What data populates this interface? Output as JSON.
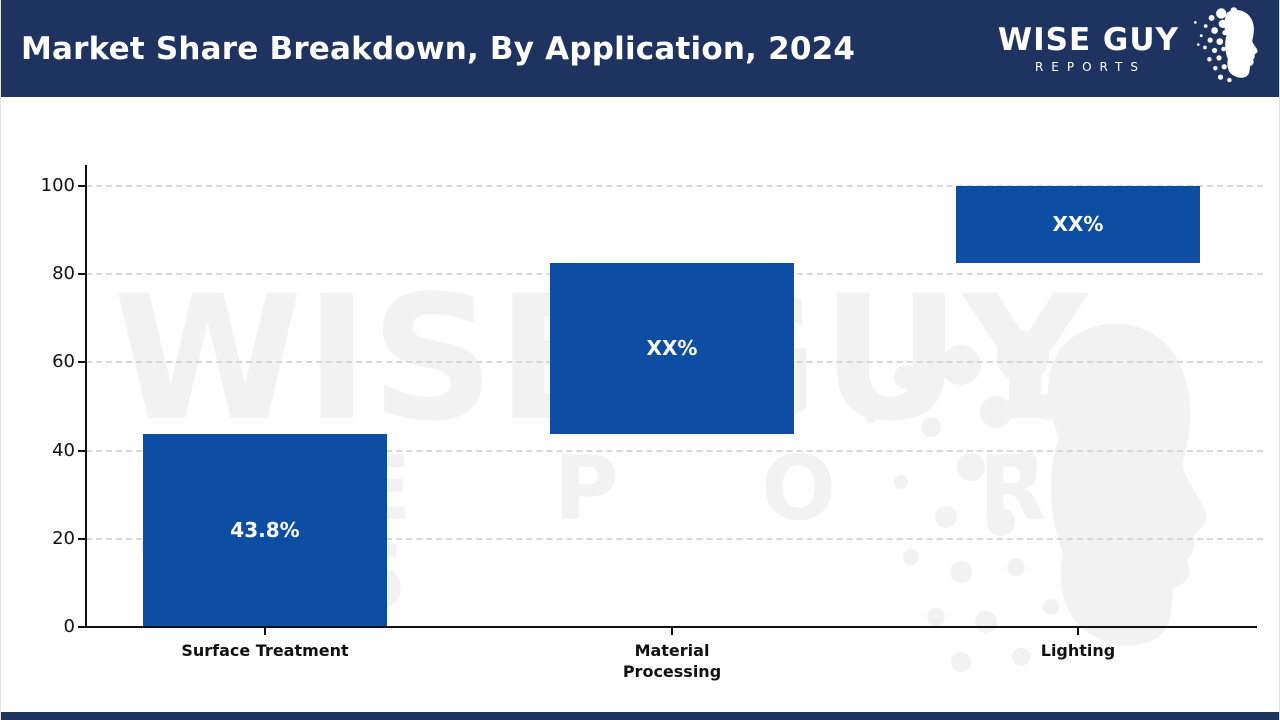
{
  "header": {
    "title": "Market Share Breakdown, By Application, 2024",
    "bg_color": "#1f3361",
    "logo": {
      "line1": "WISE GUY",
      "line2": "REPORTS",
      "line2_spaced": "R E P O R T S"
    }
  },
  "chart_data": {
    "type": "bar",
    "variant": "floating-segment-waterfall",
    "title": "Market Share Breakdown, By Application, 2024",
    "categories": [
      "Surface Treatment",
      "Material\nProcessing",
      "Lighting"
    ],
    "bars": [
      {
        "category": "Surface Treatment",
        "start": 0,
        "end": 43.8,
        "label": "43.8%"
      },
      {
        "category": "Material Processing",
        "start": 43.8,
        "end": 82.6,
        "label": "XX%"
      },
      {
        "category": "Lighting",
        "start": 82.6,
        "end": 100,
        "label": "XX%"
      }
    ],
    "ylim": [
      0,
      100
    ],
    "yticks": [
      0,
      20,
      40,
      60,
      80,
      100
    ],
    "xlabel": "",
    "ylabel": "",
    "grid": {
      "horizontal": true,
      "style": "dashed",
      "color": "#d8d8d8"
    },
    "bar_color": "#0d4da2",
    "bar_label_color": "#ffffff",
    "axis_color": "#111111",
    "legend": null,
    "watermark": {
      "line1": "WISE GUY",
      "line2": "R E P O R T S"
    }
  },
  "footer": {
    "bar_color": "#1f3361"
  }
}
